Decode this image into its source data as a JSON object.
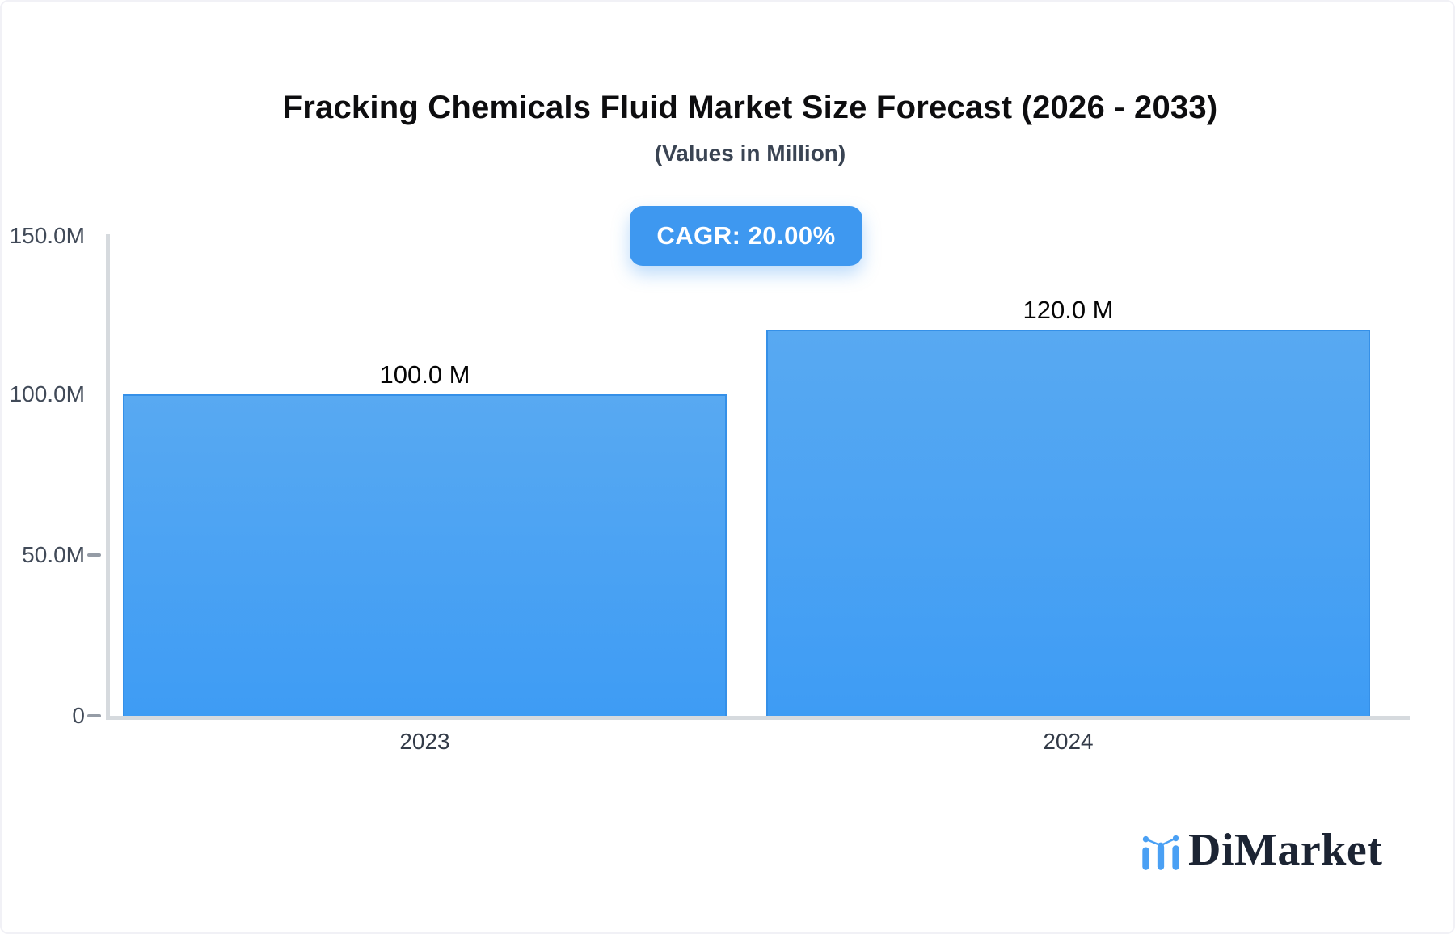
{
  "header": {
    "title": "Fracking Chemicals Fluid Market Size Forecast (2026 - 2033)",
    "subtitle": "(Values in Million)"
  },
  "cagr_badge": {
    "label": "CAGR: 20.00%",
    "background_color": "#3e98f0",
    "text_color": "#ffffff"
  },
  "chart_data": {
    "type": "bar",
    "title": "Fracking Chemicals Fluid Market Size Forecast (2026 - 2033)",
    "subtitle": "(Values in Million)",
    "unit": "Million",
    "categories": [
      "2023",
      "2024"
    ],
    "values": [
      100.0,
      120.0
    ],
    "bar_labels": [
      "100.0 M",
      "120.0 M"
    ],
    "y_ticks": [
      "150.0M",
      "100.0M",
      "50.0M",
      "0"
    ],
    "ylim": [
      0,
      150
    ],
    "grid": false,
    "legend": false,
    "bar_color_top": "#58a9f2",
    "bar_color_bottom": "#3e9cf4",
    "bar_border_color": "#3590e8",
    "axis_color": "#d6dade",
    "tick_color": "#959ca6",
    "label_color": "#414a58"
  },
  "branding": {
    "name": "DiMarket",
    "icon": "bar-chart-logo-icon",
    "icon_color": "#4aa0f4",
    "name_color": "#1c2433"
  }
}
